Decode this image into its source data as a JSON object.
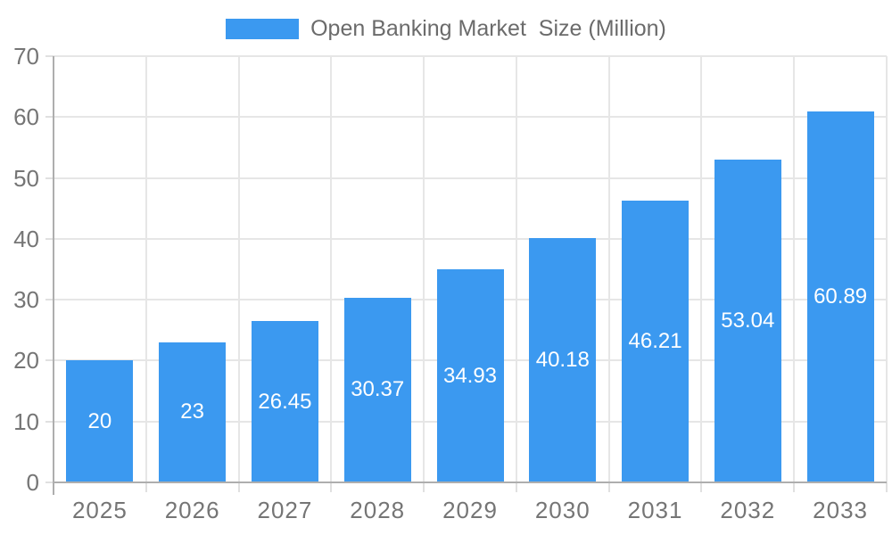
{
  "legend": {
    "label": "Open Banking Market  Size (Million)"
  },
  "colors": {
    "bar": "#3B99F0",
    "grid": "#E6E6E6",
    "tick": "#E0E0E0",
    "axis": "#AEAEAE",
    "axis_text": "#757575",
    "legend_text": "#6B6B6B",
    "value_text": "#FFFFFF",
    "background": "#FFFFFF"
  },
  "chart_data": {
    "type": "bar",
    "title": "Open Banking Market  Size (Million)",
    "categories": [
      "2025",
      "2026",
      "2027",
      "2028",
      "2029",
      "2030",
      "2031",
      "2032",
      "2033"
    ],
    "values": [
      20,
      23,
      26.45,
      30.37,
      34.93,
      40.18,
      46.21,
      53.04,
      60.89
    ],
    "value_labels": [
      "20",
      "23",
      "26.45",
      "30.37",
      "34.93",
      "40.18",
      "46.21",
      "53.04",
      "60.89"
    ],
    "xlabel": "",
    "ylabel": "",
    "ylim": [
      0,
      70
    ],
    "yticks": [
      0,
      10,
      20,
      30,
      40,
      50,
      60,
      70
    ],
    "grid": true,
    "legend_position": "top",
    "value_label_position": "inside-center"
  }
}
